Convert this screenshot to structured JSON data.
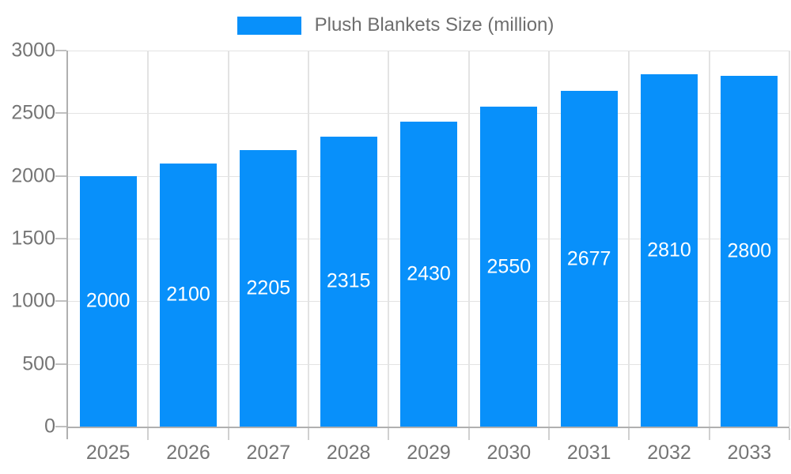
{
  "legend": {
    "label": "Plush Blankets Size (million)"
  },
  "chart_data": {
    "type": "bar",
    "title": "Plush Blankets Size (million)",
    "categories": [
      "2025",
      "2026",
      "2027",
      "2028",
      "2029",
      "2030",
      "2031",
      "2032",
      "2033"
    ],
    "values": [
      2000,
      2100,
      2205,
      2315,
      2430,
      2550,
      2677,
      2810,
      2800
    ],
    "data_labels": [
      "2000",
      "2100",
      "2205",
      "2315",
      "2430",
      "2550",
      "2677",
      "2810",
      "2800"
    ],
    "xlabel": "",
    "ylabel": "",
    "y_ticks": [
      0,
      500,
      1000,
      1500,
      2000,
      2500,
      3000
    ],
    "ylim": [
      0,
      3000
    ],
    "grid": true,
    "legend_position": "top-center",
    "data_label_position": "inside-center"
  },
  "colors": {
    "bar": "#0890fa",
    "bar_label": "#ffffff",
    "gridline": "#e3e3e3",
    "axis_line": "#b0b0b0",
    "tick": "#c0c0c0",
    "axis_label": "#757575",
    "legend_text": "#6e6e6e",
    "background": "#ffffff"
  }
}
